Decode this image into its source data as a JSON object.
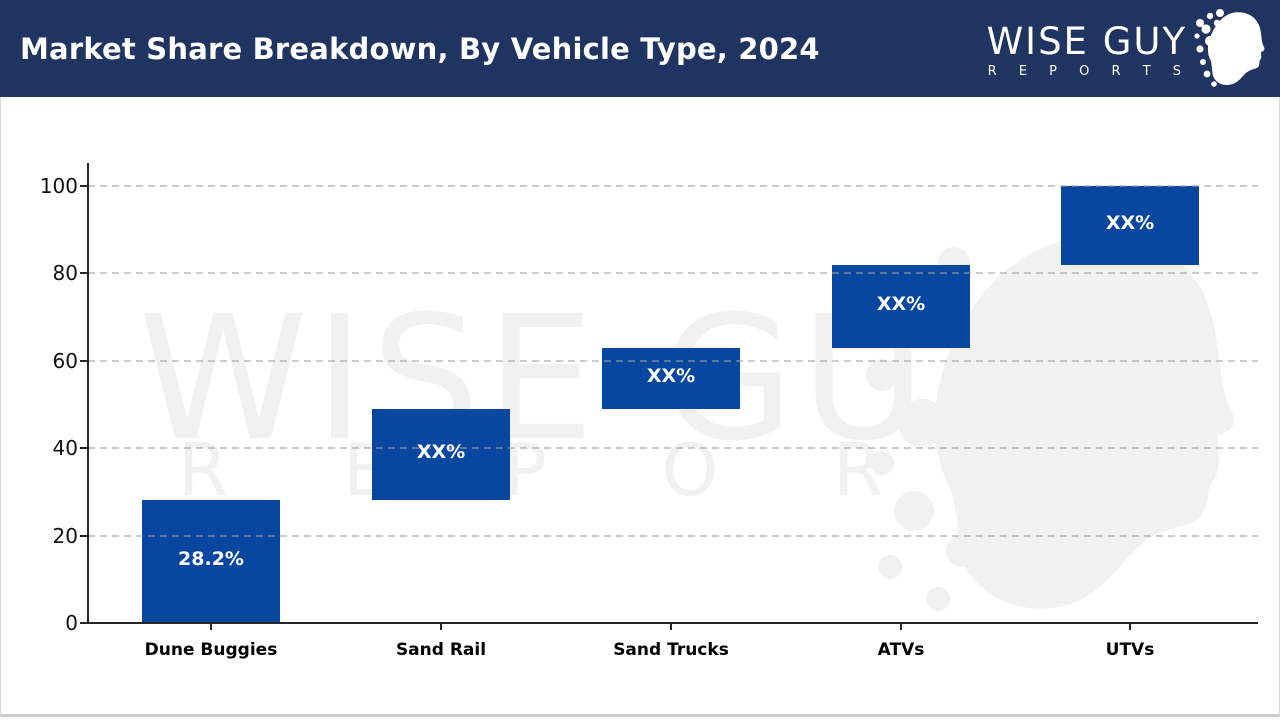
{
  "header": {
    "title": "Market Share Breakdown, By Vehicle Type, 2024",
    "logo": {
      "line1": "WISE GUY",
      "line2": "REPORTS"
    }
  },
  "watermark": {
    "line1": "WISE GUY",
    "line2": "REPORTS"
  },
  "chart_data": {
    "type": "bar",
    "subtype": "waterfall",
    "title": "Market Share Breakdown, By Vehicle Type, 2024",
    "categories": [
      "Dune Buggies",
      "Sand Rail",
      "Sand Trucks",
      "ATVs",
      "UTVs"
    ],
    "segments": [
      {
        "category": "Dune Buggies",
        "start": 0,
        "end": 28.2,
        "label": "28.2%"
      },
      {
        "category": "Sand Rail",
        "start": 28.2,
        "end": 49,
        "label": "XX%"
      },
      {
        "category": "Sand Trucks",
        "start": 49,
        "end": 63,
        "label": "XX%"
      },
      {
        "category": "ATVs",
        "start": 63,
        "end": 82,
        "label": "XX%"
      },
      {
        "category": "UTVs",
        "start": 82,
        "end": 100,
        "label": "XX%"
      }
    ],
    "yticks": [
      0,
      20,
      40,
      60,
      80,
      100
    ],
    "ylim": [
      0,
      105
    ],
    "xlabel": "",
    "ylabel": "",
    "grid": "horizontal-dashed",
    "legend": "none",
    "bar_color": "#0847a0"
  },
  "colors": {
    "header_bg": "#1f3460",
    "bar": "#0847a0",
    "axis": "#262626",
    "gridline": "#d0d0d0",
    "watermark": "#f1f1f1",
    "value_label": "#ffffff"
  }
}
